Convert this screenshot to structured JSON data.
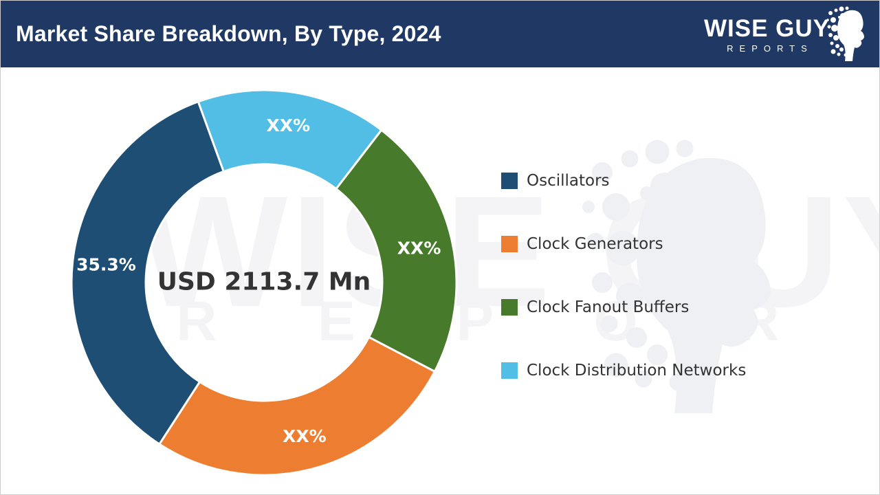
{
  "header": {
    "title": "Market Share Breakdown, By Type, 2024",
    "bg_color": "#203864",
    "logo": {
      "line1": "WISE GUY",
      "line2": "REPORTS"
    }
  },
  "watermark": {
    "line1": "WISE GUY",
    "line2": "REPORTS"
  },
  "chart_data": {
    "type": "pie",
    "variant": "donut",
    "title": "Market Share Breakdown, By Type, 2024",
    "center_label": "USD 2113.7 Mn",
    "start_angle_deg": -20,
    "inner_radius_ratio": 0.61,
    "legend_position": "right",
    "segments": [
      {
        "name": "Clock Distribution Networks",
        "value_pct": 16.0,
        "label": "XX%",
        "color": "#52BDE5"
      },
      {
        "name": "Clock Fanout Buffers",
        "value_pct": 22.2,
        "label": "XX%",
        "color": "#477A2B"
      },
      {
        "name": "Clock Generators",
        "value_pct": 26.5,
        "label": "XX%",
        "color": "#ED7D31"
      },
      {
        "name": "Oscillators",
        "value_pct": 35.3,
        "label": "35.3%",
        "color": "#1F4E74"
      }
    ],
    "legend": [
      {
        "label": "Oscillators",
        "color": "#1F4E74"
      },
      {
        "label": "Clock Generators",
        "color": "#ED7D31"
      },
      {
        "label": "Clock Fanout Buffers",
        "color": "#477A2B"
      },
      {
        "label": "Clock Distribution Networks",
        "color": "#52BDE5"
      }
    ],
    "colors": {
      "center_text": "#333333",
      "segment_label_text": "#ffffff",
      "separator": "#ffffff"
    }
  }
}
